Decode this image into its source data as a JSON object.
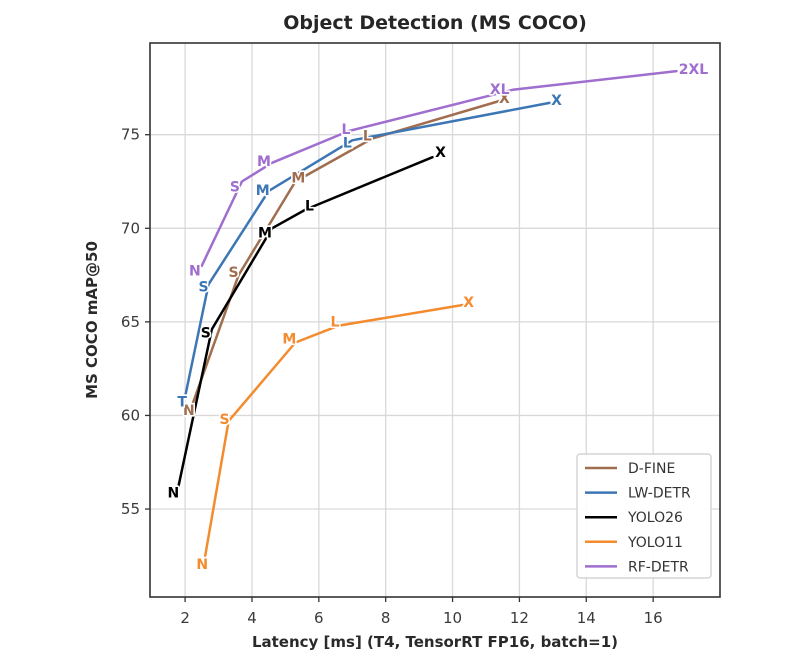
{
  "chart_data": {
    "type": "line",
    "title": "Object Detection (MS COCO)",
    "xlabel": "Latency [ms] (T4, TensorRT FP16, batch=1)",
    "ylabel": "MS COCO mAP@50",
    "xlim": [
      0.95,
      18.0
    ],
    "ylim": [
      50.3,
      79.9
    ],
    "xticks": [
      2,
      4,
      6,
      8,
      10,
      12,
      14,
      16
    ],
    "yticks": [
      55,
      60,
      65,
      70,
      75
    ],
    "grid": true,
    "legend_position": "lower right",
    "series": [
      {
        "name": "D-FINE",
        "color": "#a06e4f",
        "points": [
          {
            "label": "N",
            "x": 2.2,
            "y": 60.5,
            "dx": -3,
            "dy": 4
          },
          {
            "label": "S",
            "x": 3.6,
            "y": 67.5,
            "dx": -5,
            "dy": -3
          },
          {
            "label": "M",
            "x": 5.3,
            "y": 72.5,
            "dx": 3,
            "dy": -4
          },
          {
            "label": "L",
            "x": 7.6,
            "y": 74.8,
            "dx": -5,
            "dy": -3
          },
          {
            "label": "X",
            "x": 11.4,
            "y": 76.8,
            "dx": 5,
            "dy": -3
          }
        ]
      },
      {
        "name": "LW-DETR",
        "color": "#3d76b4",
        "points": [
          {
            "label": "T",
            "x": 2.0,
            "y": 61.0,
            "dx": -3,
            "dy": 5
          },
          {
            "label": "S",
            "x": 2.7,
            "y": 67.0,
            "dx": -5,
            "dy": 2
          },
          {
            "label": "M",
            "x": 4.5,
            "y": 72.0,
            "dx": -6,
            "dy": -1
          },
          {
            "label": "L",
            "x": 7.0,
            "y": 74.7,
            "dx": -5,
            "dy": 2
          },
          {
            "label": "X",
            "x": 12.9,
            "y": 76.7,
            "dx": 7,
            "dy": -3
          }
        ]
      },
      {
        "name": "YOLO26",
        "color": "#000000",
        "points": [
          {
            "label": "N",
            "x": 1.8,
            "y": 56.2,
            "dx": -5,
            "dy": 6
          },
          {
            "label": "S",
            "x": 2.8,
            "y": 64.6,
            "dx": -6,
            "dy": 3
          },
          {
            "label": "M",
            "x": 4.6,
            "y": 70.0,
            "dx": -7,
            "dy": 4
          },
          {
            "label": "L",
            "x": 5.6,
            "y": 71.0,
            "dx": 4,
            "dy": -4
          },
          {
            "label": "X",
            "x": 9.4,
            "y": 73.8,
            "dx": 8,
            "dy": -5
          }
        ]
      },
      {
        "name": "YOLO11",
        "color": "#f38b2f",
        "points": [
          {
            "label": "N",
            "x": 2.6,
            "y": 52.5,
            "dx": -3,
            "dy": 8
          },
          {
            "label": "S",
            "x": 3.3,
            "y": 59.7,
            "dx": -4,
            "dy": -2
          },
          {
            "label": "M",
            "x": 5.3,
            "y": 63.9,
            "dx": -6,
            "dy": -4
          },
          {
            "label": "L",
            "x": 6.6,
            "y": 64.8,
            "dx": -4,
            "dy": -4
          },
          {
            "label": "X",
            "x": 10.3,
            "y": 65.9,
            "dx": 6,
            "dy": -3
          }
        ]
      },
      {
        "name": "RF-DETR",
        "color": "#9f6ecf",
        "points": [
          {
            "label": "N",
            "x": 2.5,
            "y": 68.0,
            "dx": -7,
            "dy": 5
          },
          {
            "label": "S",
            "x": 3.7,
            "y": 72.5,
            "dx": -7,
            "dy": 5
          },
          {
            "label": "M",
            "x": 4.6,
            "y": 73.5,
            "dx": -8,
            "dy": -2
          },
          {
            "label": "L",
            "x": 6.9,
            "y": 75.2,
            "dx": -3,
            "dy": -2
          },
          {
            "label": "XL",
            "x": 11.8,
            "y": 77.4,
            "dx": -13,
            "dy": -1
          },
          {
            "label": "2XL",
            "x": 16.7,
            "y": 78.4,
            "dx": 17,
            "dy": -2
          }
        ]
      }
    ]
  },
  "colors": {
    "background": "#ffffff",
    "grid": "#d9d9d9",
    "spine": "#333333",
    "tick": "#333333",
    "tick_label": "#3a3a3a",
    "legend_border": "#cccccc",
    "legend_bg": "#ffffff"
  }
}
